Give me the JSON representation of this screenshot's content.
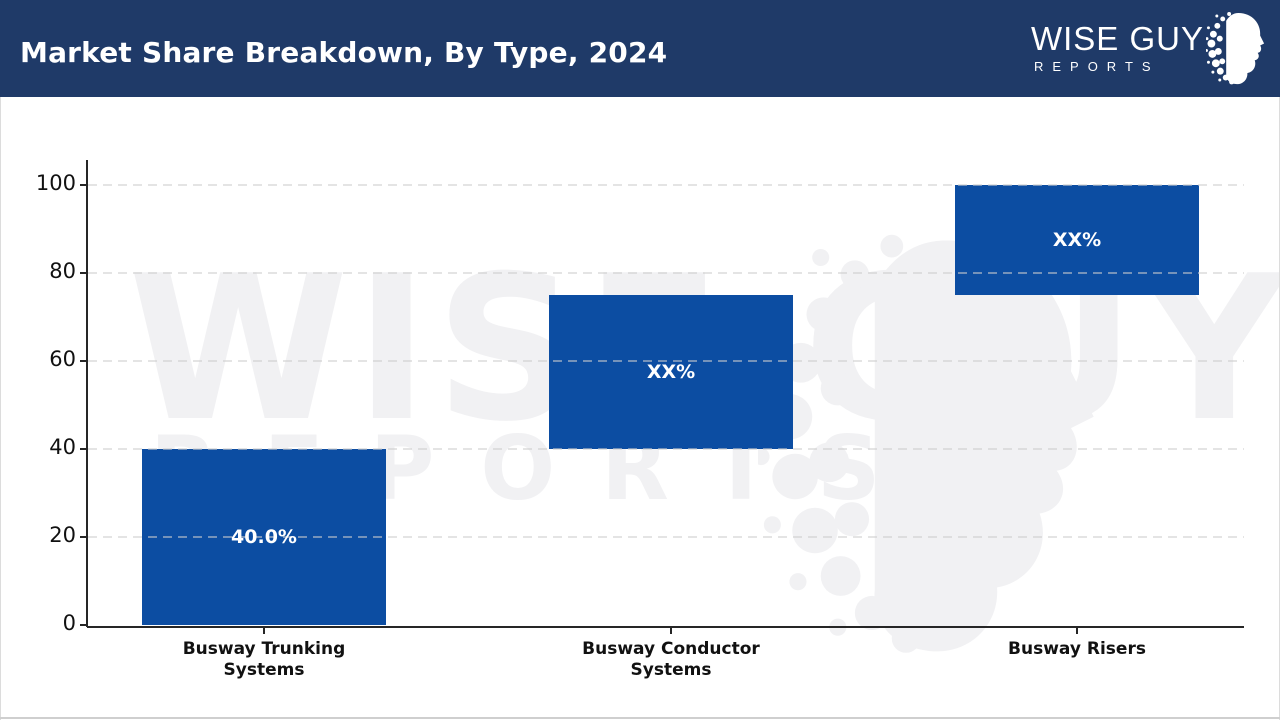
{
  "header": {
    "title": "Market Share Breakdown, By Type, 2024",
    "logo": {
      "wordmark": "WISE GUY",
      "subtitle": "REPORTS"
    },
    "bg_color": "#1f3a68"
  },
  "watermark": {
    "wordmark": "WISE GUY",
    "subtitle": "REPORTS"
  },
  "chart_data": {
    "type": "bar",
    "subtype": "floating-waterfall",
    "title": "Market Share Breakdown, By Type, 2024",
    "categories": [
      "Busway Trunking\nSystems",
      "Busway Conductor\nSystems",
      "Busway Risers"
    ],
    "segments": [
      {
        "category": "Busway Trunking Systems",
        "start": 0,
        "end": 40,
        "value": 40,
        "label": "40.0%"
      },
      {
        "category": "Busway Conductor Systems",
        "start": 40,
        "end": 75,
        "value": 35,
        "label": "XX%"
      },
      {
        "category": "Busway Risers",
        "start": 75,
        "end": 100,
        "value": 25,
        "label": "XX%"
      }
    ],
    "ylim": [
      0,
      100
    ],
    "yticks": [
      0,
      20,
      40,
      60,
      80,
      100
    ],
    "grid": {
      "horizontal": true,
      "style": "dashed",
      "over_bars": true
    },
    "bar_color": "#0c4da2",
    "value_label_color": "#ffffff",
    "axis_color": "#262626",
    "legend": null
  }
}
